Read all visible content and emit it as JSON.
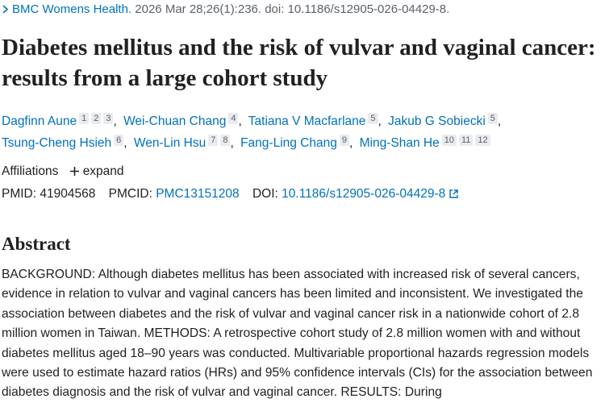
{
  "citation": {
    "journal": "BMC Womens Health.",
    "details": "2026 Mar 28;26(1):236. doi: 10.1186/s12905-026-04429-8."
  },
  "title": "Diabetes mellitus and the risk of vulvar and vaginal cancer: results from a large cohort study",
  "authors": [
    {
      "name": "Dagfinn Aune",
      "affiliations": [
        "1",
        "2",
        "3"
      ]
    },
    {
      "name": "Wei-Chuan Chang",
      "affiliations": [
        "4"
      ]
    },
    {
      "name": "Tatiana V Macfarlane",
      "affiliations": [
        "5"
      ]
    },
    {
      "name": "Jakub G Sobiecki",
      "affiliations": [
        "5"
      ]
    },
    {
      "name": "Tsung-Cheng Hsieh",
      "affiliations": [
        "6"
      ]
    },
    {
      "name": "Wen-Lin Hsu",
      "affiliations": [
        "7",
        "8"
      ]
    },
    {
      "name": "Fang-Ling Chang",
      "affiliations": [
        "9"
      ]
    },
    {
      "name": "Ming-Shan He",
      "affiliations": [
        "10",
        "11",
        "12"
      ]
    }
  ],
  "affiliations": {
    "label": "Affiliations",
    "toggle": "expand"
  },
  "identifiers": {
    "pmid_label": "PMID:",
    "pmid": "41904568",
    "pmcid_label": "PMCID:",
    "pmcid": "PMC13151208",
    "doi_label": "DOI:",
    "doi": "10.1186/s12905-026-04429-8"
  },
  "abstract": {
    "heading": "Abstract",
    "text": "BACKGROUND: Although diabetes mellitus has been associated with increased risk of several cancers, evidence in relation to vulvar and vaginal cancers has been limited and inconsistent. We investigated the association between diabetes and the risk of vulvar and vaginal cancer risk in a nationwide cohort of 2.8 million women in Taiwan. METHODS: A retrospective cohort study of 2.8 million women with and without diabetes mellitus aged 18–90 years was conducted. Multivariable proportional hazards regression models were used to estimate hazard ratios (HRs) and 95% confidence intervals (CIs) for the association between diabetes diagnosis and the risk of vulvar and vaginal cancer. RESULTS: During"
  }
}
